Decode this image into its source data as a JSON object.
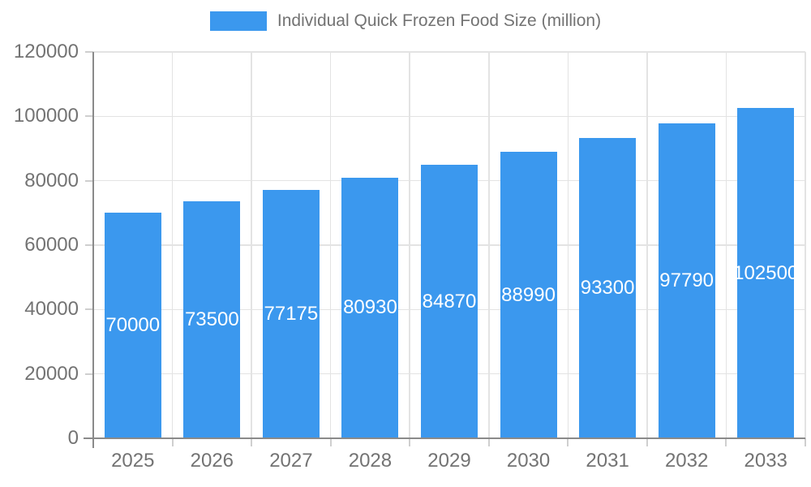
{
  "legend": {
    "label": "Individual Quick Frozen Food Size (million)"
  },
  "chart_data": {
    "type": "bar",
    "title": "Individual Quick Frozen Food Size (million)",
    "categories": [
      "2025",
      "2026",
      "2027",
      "2028",
      "2029",
      "2030",
      "2031",
      "2032",
      "2033"
    ],
    "values": [
      70000,
      73500,
      77175,
      80930,
      84870,
      88990,
      93300,
      97790,
      102500
    ],
    "data_labels": [
      "70000",
      "73500",
      "77175",
      "80930",
      "84870",
      "88990",
      "93300",
      "97790",
      "102500"
    ],
    "ylim": [
      0,
      120000
    ],
    "yticks": [
      0,
      20000,
      40000,
      60000,
      80000,
      100000,
      120000
    ],
    "ytick_labels": [
      "0",
      "20000",
      "40000",
      "60000",
      "80000",
      "100000",
      "120000"
    ],
    "xlabel": "",
    "ylabel": "",
    "grid": true,
    "legend_position": "top-center",
    "bar_color": "#3b98ee",
    "value_label_color": "#ffffff",
    "axis_text_color": "#737373",
    "gridline_color": "#e3e3e3",
    "tick_color": "#cfcfcf",
    "axis_line_color": "#8a8a8a"
  }
}
